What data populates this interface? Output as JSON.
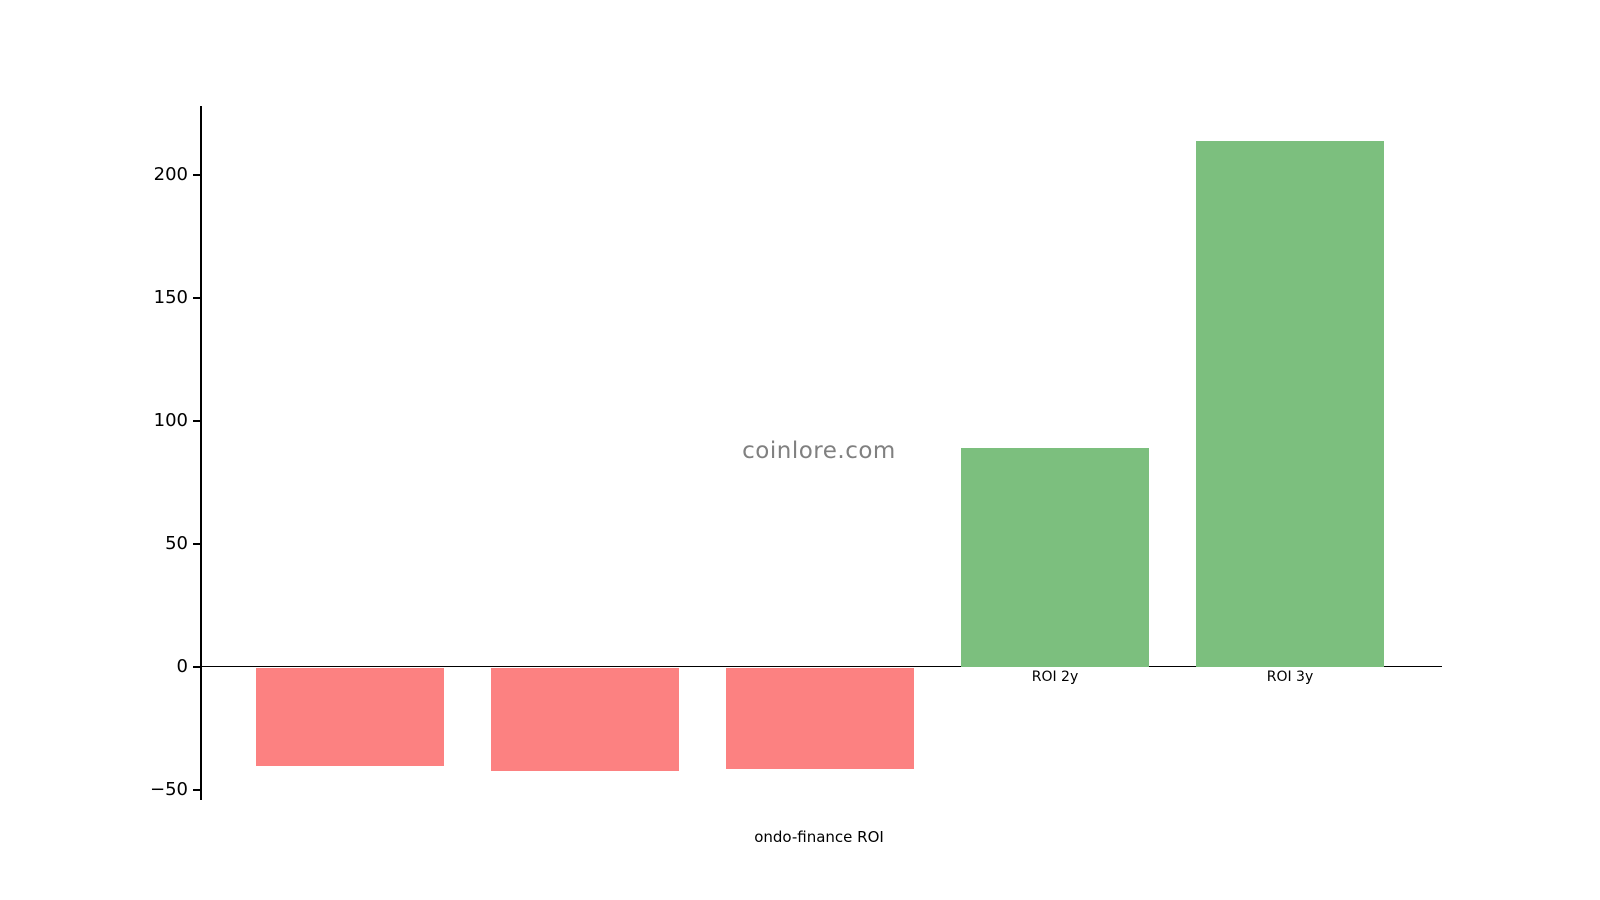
{
  "page": {
    "background": "#ffffff"
  },
  "watermark": {
    "text": "coinlore.com",
    "color": "#808080"
  },
  "chart_data": {
    "type": "bar",
    "title": "",
    "xlabel": "ondo-finance ROI",
    "ylabel": "",
    "categories": [
      "",
      "",
      "",
      "ROI 2y",
      "ROI 3y"
    ],
    "values": [
      -40,
      -42,
      -41,
      89,
      214
    ],
    "yticks": [
      -50,
      0,
      50,
      100,
      150,
      200
    ],
    "ylim": [
      -54,
      228
    ],
    "grid": false,
    "legend": "none",
    "bar_color_positive": "#7cbf7e",
    "bar_color_negative": "#fc8181",
    "axis_color": "#000000"
  }
}
